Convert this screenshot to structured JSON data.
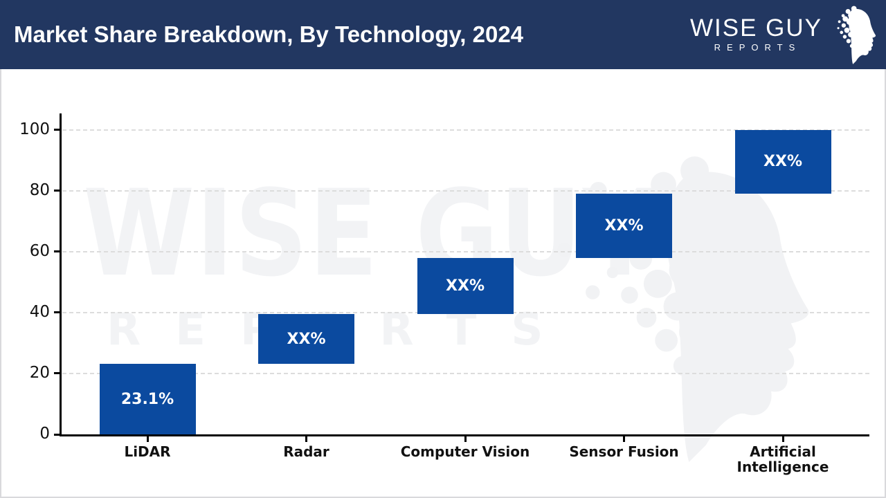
{
  "header": {
    "title": "Market Share Breakdown, By Technology, 2024",
    "logo": {
      "line1": "WISE GUY",
      "line2": "REPORTS"
    }
  },
  "watermark": {
    "line1": "WISE GUY",
    "line2": "REPORTS"
  },
  "chart_data": {
    "type": "bar",
    "subtype": "waterfall",
    "title": "Market Share Breakdown, By Technology, 2024",
    "xlabel": "",
    "ylabel": "",
    "categories": [
      "LiDAR",
      "Radar",
      "Computer Vision",
      "Sensor Fusion",
      "Artificial Intelligence"
    ],
    "segments": [
      {
        "category": "LiDAR",
        "start": 0,
        "end": 23.1,
        "label": "23.1%"
      },
      {
        "category": "Radar",
        "start": 23.1,
        "end": 39.5,
        "label": "XX%"
      },
      {
        "category": "Computer Vision",
        "start": 39.5,
        "end": 58,
        "label": "XX%"
      },
      {
        "category": "Sensor Fusion",
        "start": 58,
        "end": 79,
        "label": "XX%"
      },
      {
        "category": "Artificial Intelligence",
        "start": 79,
        "end": 100,
        "label": "XX%"
      }
    ],
    "yticks": [
      0,
      20,
      40,
      60,
      80,
      100
    ],
    "ylim": [
      0,
      105
    ],
    "grid": "horizontal-dashed",
    "legend": "none",
    "colors": {
      "header_bg": "#223761",
      "bar": "#0b4a9f",
      "grid": "#dcdcdc",
      "axis": "#000000",
      "bar_label_text": "#ffffff",
      "watermark": "#f2f3f5"
    }
  }
}
